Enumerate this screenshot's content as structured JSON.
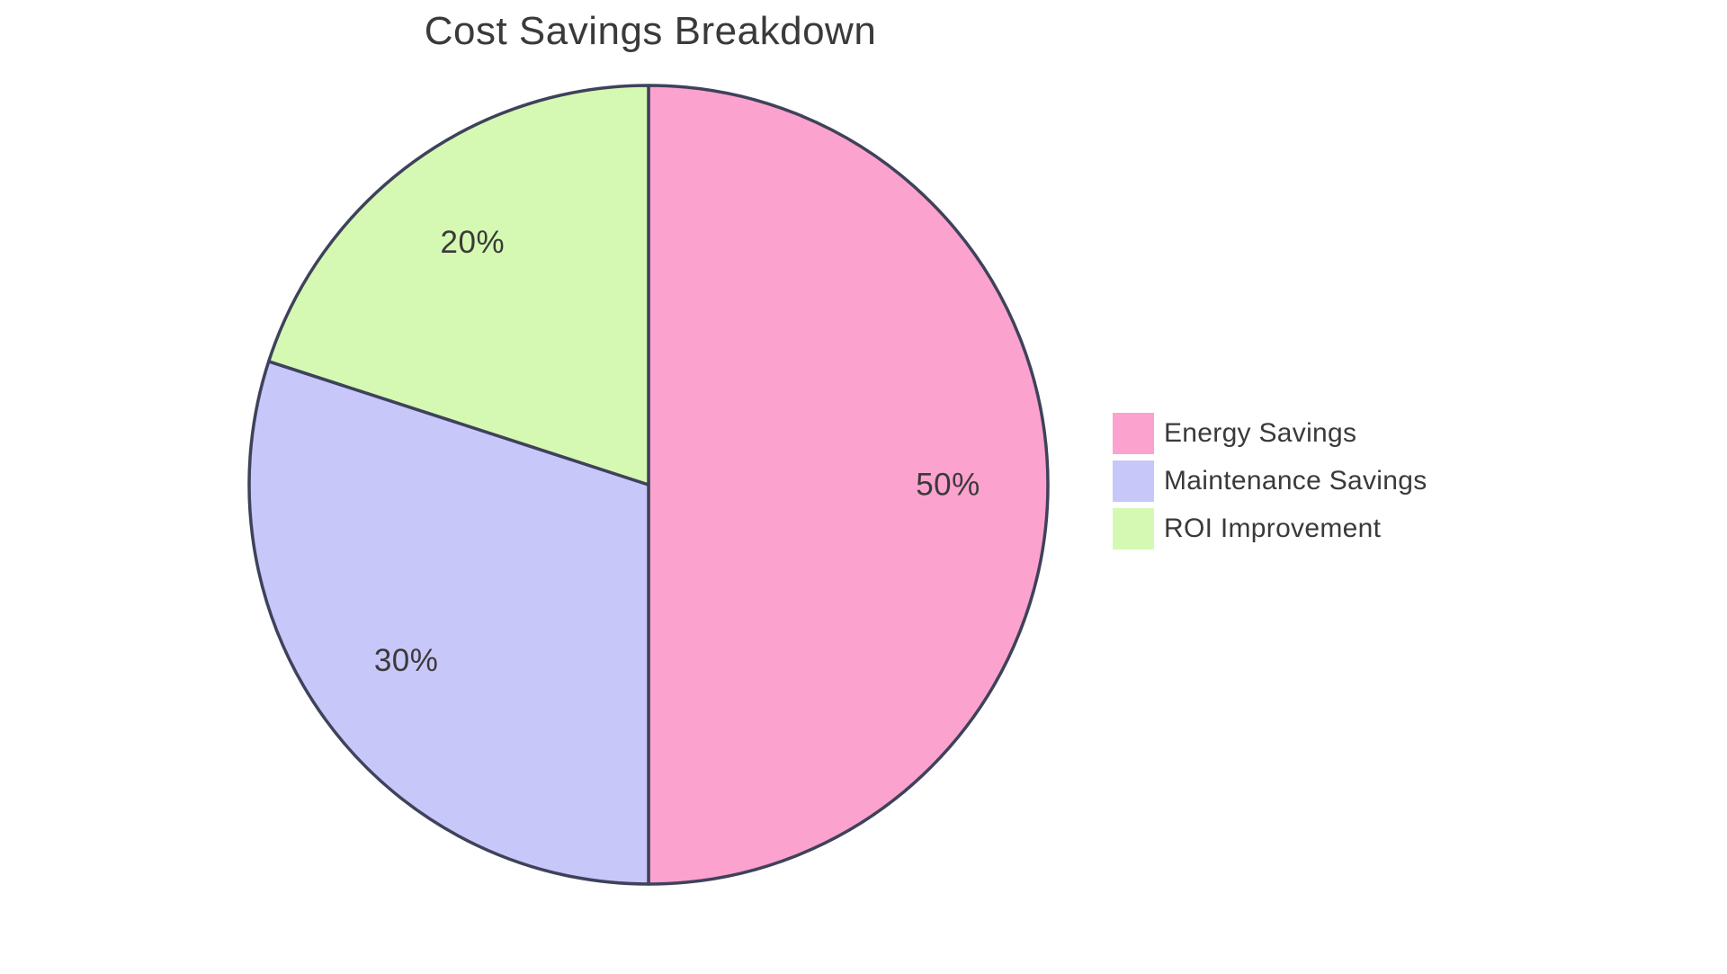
{
  "chart_data": {
    "type": "pie",
    "title": "Cost Savings Breakdown",
    "labels": [
      "Energy Savings",
      "Maintenance Savings",
      "ROI Improvement"
    ],
    "values": [
      50,
      30,
      20
    ],
    "percent_labels": [
      "50%",
      "30%",
      "20%"
    ],
    "colors": [
      "#FCA2CE",
      "#C8C7F9",
      "#D5F9B2"
    ],
    "slice_outline_color": "#3E425A",
    "text_color": "#3A3A3A",
    "background": "#FFFFFF",
    "start_angle_deg": 0,
    "direction": "clockwise",
    "legend_position": "right",
    "label_radius_fraction": 0.75
  }
}
